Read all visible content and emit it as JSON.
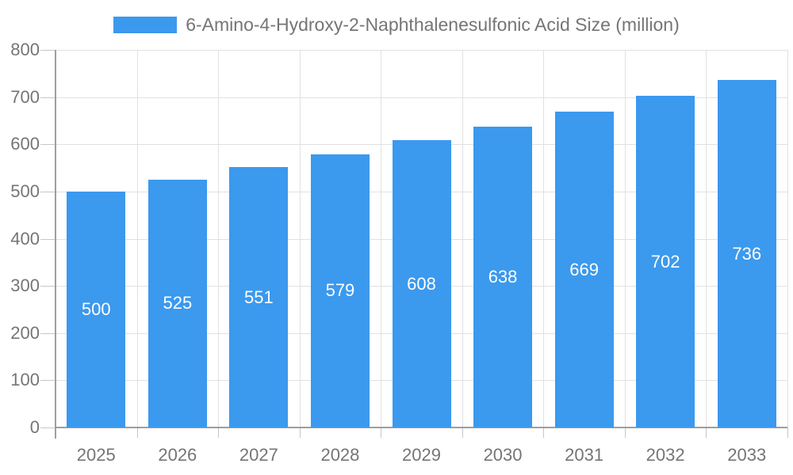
{
  "legend": {
    "label": "6-Amino-4-Hydroxy-2-Naphthalenesulfonic Acid Size (million)"
  },
  "chart_data": {
    "type": "bar",
    "title": "6-Amino-4-Hydroxy-2-Naphthalenesulfonic Acid Size (million)",
    "series_name": "6-Amino-4-Hydroxy-2-Naphthalenesulfonic Acid Size (million)",
    "categories": [
      "2025",
      "2026",
      "2027",
      "2028",
      "2029",
      "2030",
      "2031",
      "2032",
      "2033"
    ],
    "values": [
      500,
      525,
      551,
      579,
      608,
      638,
      669,
      702,
      736
    ],
    "value_labels": [
      "500",
      "525",
      "551",
      "579",
      "608",
      "638",
      "669",
      "702",
      "736"
    ],
    "xlabel": "",
    "ylabel": "",
    "ylim": [
      0,
      800
    ],
    "ytick_interval": 100,
    "yticks": [
      0,
      100,
      200,
      300,
      400,
      500,
      600,
      700,
      800
    ],
    "grid": true,
    "legend_position": "top",
    "colors": {
      "bar": "#3B99EE",
      "grid": "#E1E1E1",
      "axis": "#9E9E9E",
      "tick": "#C6C6C6",
      "text": "#757575",
      "value_label": "#FFFFFF",
      "background": "#FFFFFF"
    }
  }
}
